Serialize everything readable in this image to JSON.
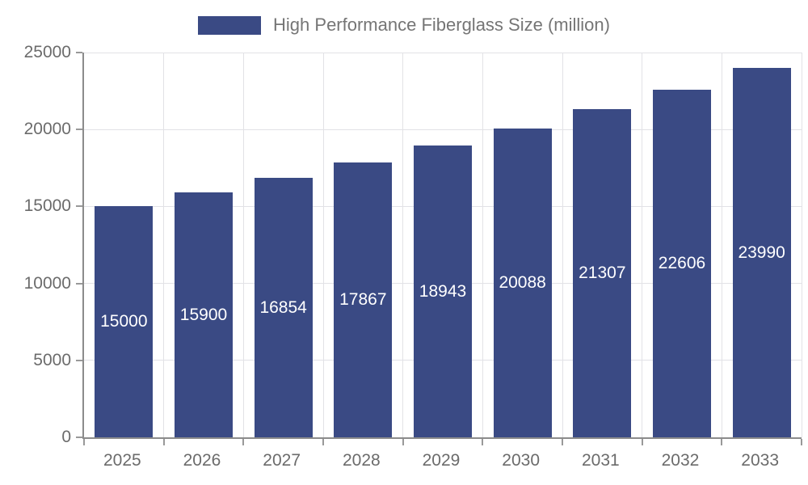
{
  "chart_data": {
    "type": "bar",
    "title": "High Performance Fiberglass Size (million)",
    "legend": [
      "High Performance Fiberglass Size (million)"
    ],
    "legend_position": "top-center",
    "categories": [
      "2025",
      "2026",
      "2027",
      "2028",
      "2029",
      "2030",
      "2031",
      "2032",
      "2033"
    ],
    "values": [
      15000,
      15900,
      16854,
      17867,
      18943,
      20088,
      21307,
      22606,
      23990
    ],
    "xlabel": "",
    "ylabel": "",
    "ylim": [
      0,
      25000
    ],
    "yticks": [
      0,
      5000,
      10000,
      15000,
      20000,
      25000
    ],
    "grid": true,
    "value_labels": "inside-center",
    "colors": {
      "bar": "#3a4a84",
      "grid": "#e2e2e6",
      "axis_line": "#8c8c8c",
      "tick": "#999999",
      "axis_label_text": "#6b6b6b",
      "legend_text": "#757575",
      "value_label_text": "#ffffff",
      "background": "#ffffff"
    }
  }
}
